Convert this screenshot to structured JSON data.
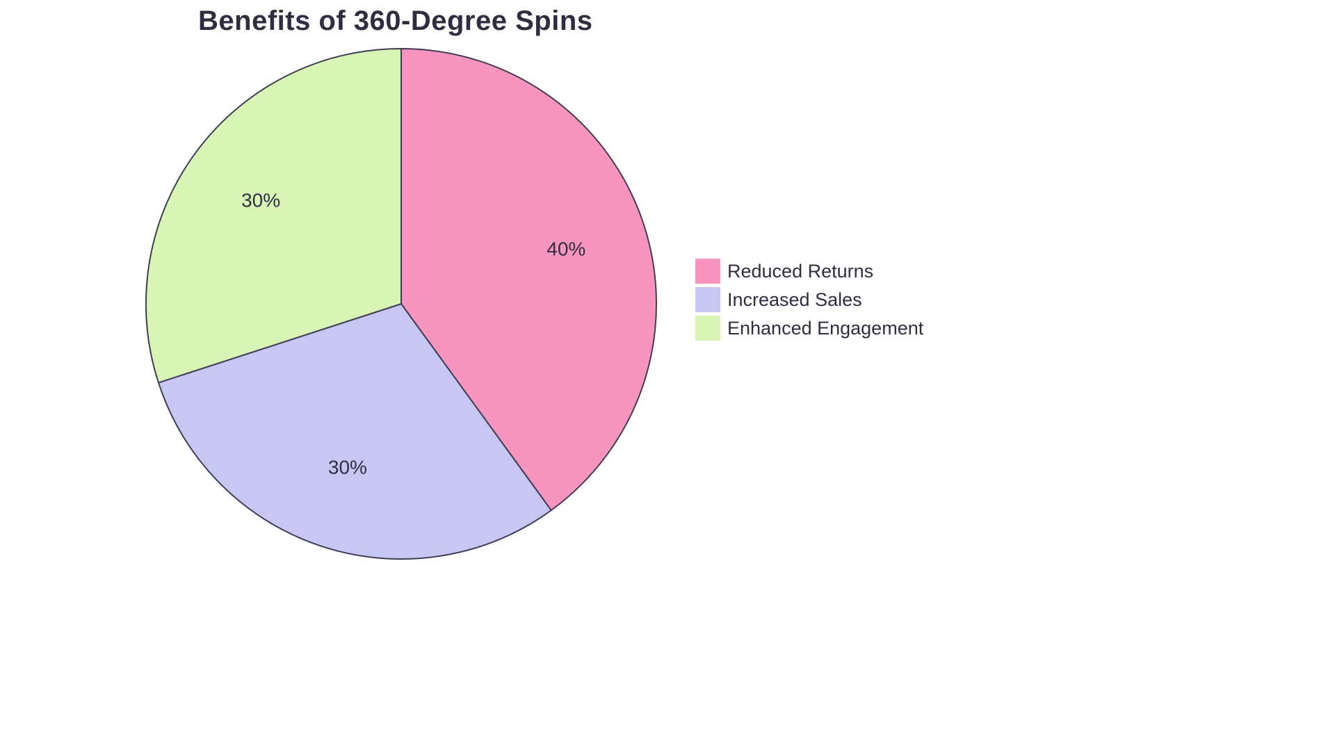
{
  "chart_data": {
    "type": "pie",
    "title": "Benefits of 360-Degree Spins",
    "labels": [
      "Reduced Returns",
      "Increased Sales",
      "Enhanced Engagement"
    ],
    "values": [
      40,
      30,
      30
    ],
    "unit": "%",
    "colors": [
      "#F795BF",
      "#C8C7F3",
      "#D8F5B5"
    ],
    "border_color": "#3F3D56",
    "text_color": "#2F2E41",
    "legend_position": "right",
    "start_angle": "top",
    "direction": "clockwise",
    "slice_labels": [
      "40%",
      "30%",
      "30%"
    ]
  },
  "layout_meta": {
    "background": "#FFFFFF"
  }
}
